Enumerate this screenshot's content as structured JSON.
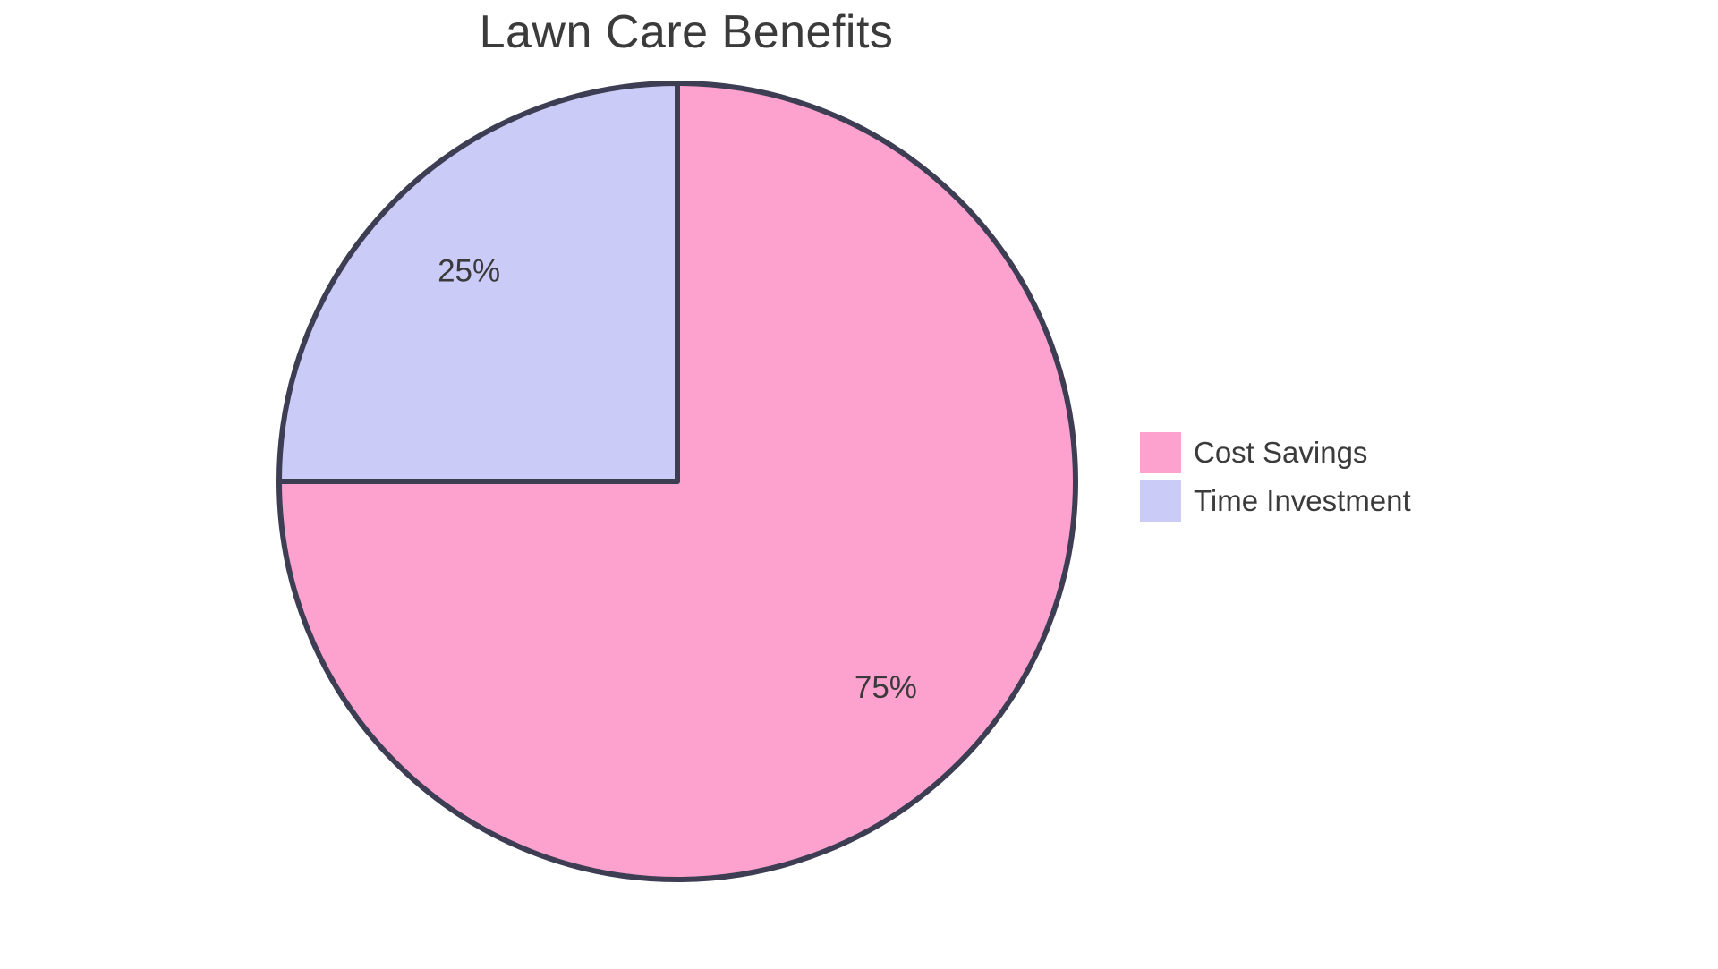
{
  "chart_data": {
    "type": "pie",
    "title": "Lawn Care Benefits",
    "labels": [
      "Cost Savings",
      "Time Investment"
    ],
    "values": [
      75,
      25
    ],
    "slice_labels": [
      "75%",
      "25%"
    ],
    "colors": [
      "#FDA2CE",
      "#CBCBF7"
    ],
    "border_color": "#3D3D54",
    "text_color": "#3B3B3B",
    "start_angle_deg": -90,
    "direction": "clockwise",
    "legend_position": "right",
    "grid": false
  }
}
